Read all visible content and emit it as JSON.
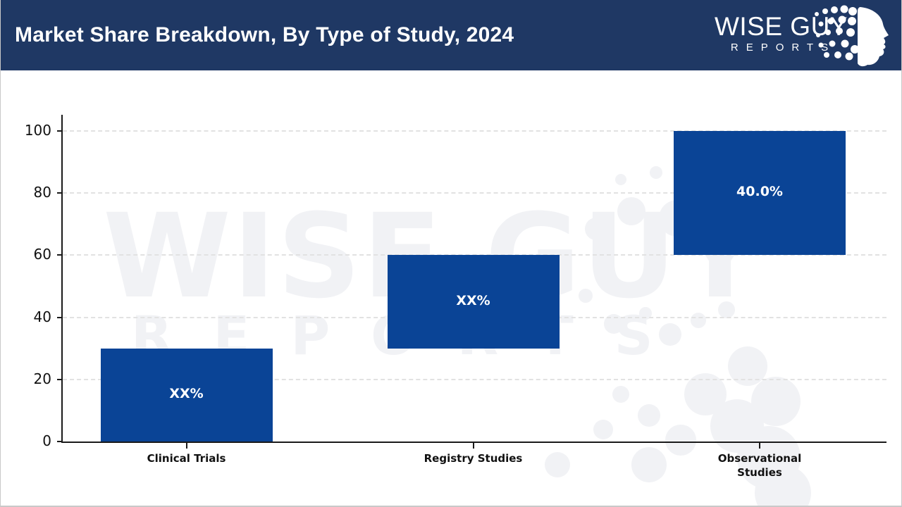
{
  "header": {
    "title": "Market Share Breakdown, By Type of Study, 2024",
    "logo": {
      "line1": "WISE GUY",
      "line2": "REPORTS"
    }
  },
  "watermark": {
    "line1": "WISE GUY",
    "line2": "REPORTS"
  },
  "colors": {
    "header_bg": "#1f3864",
    "bar_blue": "#0a4496",
    "grid": "#e2e2e2",
    "axis": "#1a1a1a",
    "watermark": "#f1f2f5",
    "bar_label_text": "#ffffff"
  },
  "chart_data": {
    "type": "bar",
    "subtype": "waterfall",
    "title": "Market Share Breakdown, By Type of Study, 2024",
    "categories": [
      "Clinical Trials",
      "Registry Studies",
      "Observational Studies"
    ],
    "segments": [
      {
        "label": "Clinical Trials",
        "start": 0,
        "end": 30,
        "value_label": "XX%"
      },
      {
        "label": "Registry Studies",
        "start": 30,
        "end": 60,
        "value_label": "XX%"
      },
      {
        "label": "Observational Studies",
        "start": 60,
        "end": 100,
        "value_label": "40.0%"
      }
    ],
    "yticks": [
      0,
      20,
      40,
      60,
      80,
      100
    ],
    "ylim": [
      0,
      105
    ],
    "xlabel": "",
    "ylabel": "",
    "grid": "dashed-horizontal",
    "legend": "none",
    "bar_color": "#0a4496"
  }
}
